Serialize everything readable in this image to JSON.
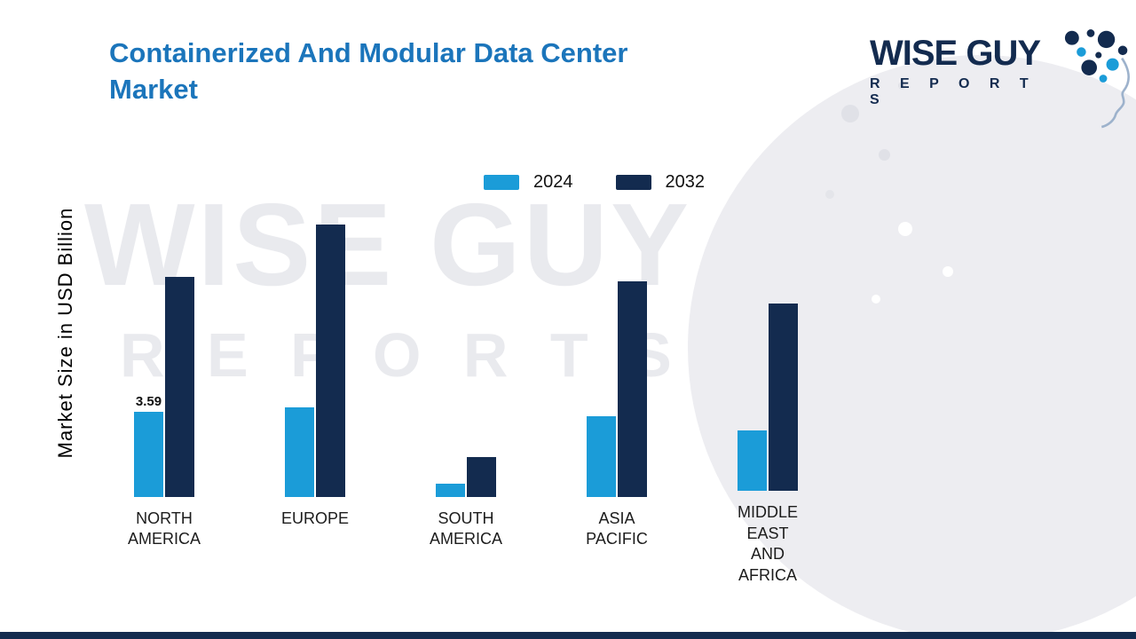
{
  "header": {
    "title": "Containerized And Modular Data Center Market"
  },
  "logo": {
    "name": "WISE GUY",
    "subtitle": "R E P O R T S"
  },
  "watermark": {
    "line1": "WISE GUY",
    "line2": "R E P O R T S"
  },
  "colors": {
    "accent_blue": "#1b9cd8",
    "navy": "#132b4f",
    "title_blue": "#1b75bb",
    "watermark_gray": "#e9eaee"
  },
  "chart_data": {
    "type": "bar",
    "title": "Containerized And Modular Data Center Market",
    "ylabel": "Market Size in USD Billion",
    "xlabel": "",
    "ylim": [
      0,
      12
    ],
    "grid": false,
    "legend_position": "top",
    "categories": [
      "NORTH AMERICA",
      "EUROPE",
      "SOUTH AMERICA",
      "ASIA PACIFIC",
      "MIDDLE EAST AND AFRICA"
    ],
    "category_lines": [
      [
        "NORTH",
        "AMERICA"
      ],
      [
        "EUROPE"
      ],
      [
        "SOUTH",
        "AMERICA"
      ],
      [
        "ASIA",
        "PACIFIC"
      ],
      [
        "MIDDLE",
        "EAST",
        "AND",
        "AFRICA"
      ]
    ],
    "series": [
      {
        "name": "2024",
        "color": "#1b9cd8",
        "values": [
          3.59,
          3.8,
          0.55,
          3.4,
          2.55
        ]
      },
      {
        "name": "2032",
        "color": "#132b4f",
        "values": [
          9.3,
          11.5,
          1.7,
          9.1,
          7.9
        ]
      }
    ],
    "annotations": [
      {
        "series": "2024",
        "category": "NORTH AMERICA",
        "text": "3.59"
      }
    ]
  }
}
